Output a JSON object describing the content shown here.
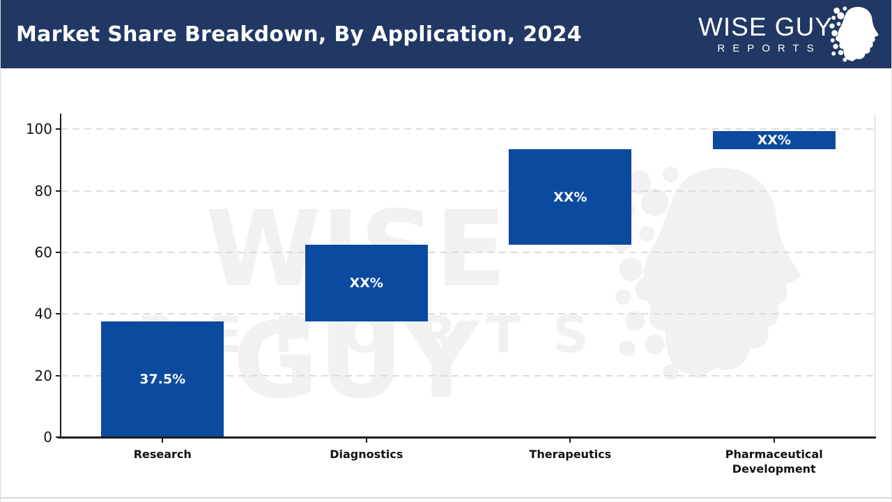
{
  "header": {
    "title": "Market Share Breakdown, By Application, 2024",
    "bg_color": "#203863",
    "logo": {
      "line1": "WISE GUY",
      "line2": "REPORTS"
    }
  },
  "watermark": {
    "line1": "WISE GUY",
    "line2": "REPORTS",
    "color": "#f1f1f3"
  },
  "chart_data": {
    "type": "bar",
    "subtype": "floating-segment (waterfall-style) bars",
    "title": "Market Share Breakdown, By Application, 2024",
    "categories": [
      "Research",
      "Diagnostics",
      "Therapeutics",
      "Pharmaceutical Development"
    ],
    "categories_display": [
      "Research",
      "Diagnostics",
      "Therapeutics",
      "Pharmaceutical\nDevelopment"
    ],
    "segments": [
      [
        0,
        37.5
      ],
      [
        37.5,
        62.5
      ],
      [
        62.5,
        93.5
      ],
      [
        93.5,
        99.5
      ]
    ],
    "values_estimated": [
      37.5,
      25,
      31,
      6
    ],
    "bar_labels": [
      "37.5%",
      "XX%",
      "XX%",
      "XX%"
    ],
    "xlabel": "",
    "ylabel": "",
    "ylim": [
      0,
      105
    ],
    "yticks": [
      0,
      20,
      40,
      60,
      80,
      100
    ],
    "grid": "horizontal dashed",
    "legend": "none",
    "bar_color": "#0b4a9e",
    "bar_label_color": "#ffffff",
    "axis_color": "#1c1c1c"
  }
}
